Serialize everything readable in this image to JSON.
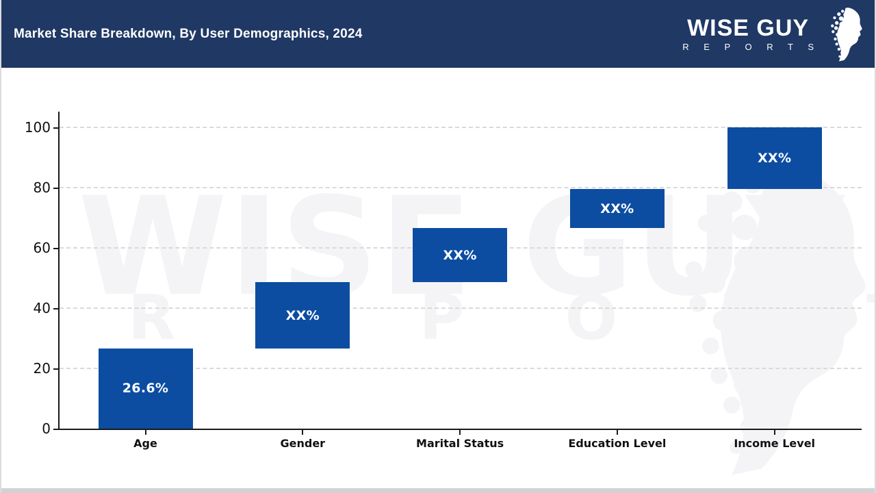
{
  "header": {
    "title": "Market Share Breakdown, By User Demographics, 2024",
    "logo": {
      "name": "WISE GUY",
      "tagline": "R E P O R T S"
    }
  },
  "watermark": {
    "line1": "WISE GUY",
    "line2": "R E P O R T S"
  },
  "colors": {
    "header_bg": "#1f3864",
    "bar": "#0c4da2",
    "grid": "#d9d9d9",
    "axis": "#1a1a1a",
    "bar_label": "#ffffff",
    "watermark": "#f4f4f6",
    "footer_strip": "#d2d2d2"
  },
  "chart_data": {
    "type": "bar",
    "subtype": "waterfall-floating-bars",
    "title": "Market Share Breakdown, By User Demographics, 2024",
    "categories": [
      "Age",
      "Gender",
      "Marital Status",
      "Education Level",
      "Income Level"
    ],
    "bars": [
      {
        "category": "Age",
        "start": 0,
        "end": 26.6,
        "label": "26.6%"
      },
      {
        "category": "Gender",
        "start": 26.6,
        "end": 48.5,
        "label": "XX%"
      },
      {
        "category": "Marital Status",
        "start": 48.5,
        "end": 66.5,
        "label": "XX%"
      },
      {
        "category": "Education Level",
        "start": 66.5,
        "end": 79.4,
        "label": "XX%"
      },
      {
        "category": "Income Level",
        "start": 79.4,
        "end": 100,
        "label": "XX%"
      }
    ],
    "ylim": [
      0,
      100
    ],
    "yticks": [
      0,
      20,
      40,
      60,
      80,
      100
    ],
    "xlabel": "",
    "ylabel": "",
    "grid": "horizontal-dashed",
    "legend": "none",
    "bar_color": "#0c4da2"
  }
}
